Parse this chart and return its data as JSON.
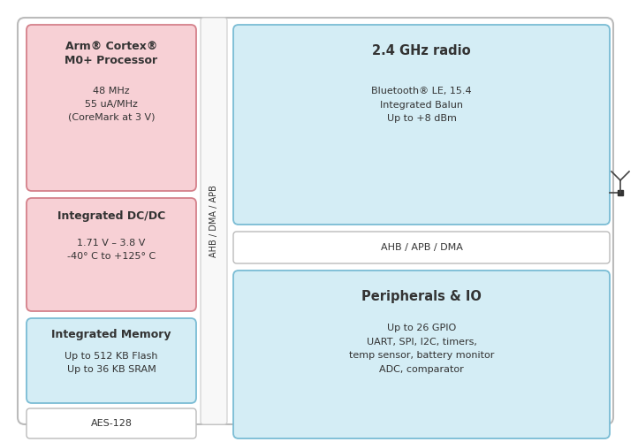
{
  "bg_color": "#ffffff",
  "pink_fill": "#f7d0d5",
  "pink_border": "#d4808a",
  "cyan_fill": "#d4edf5",
  "cyan_border": "#7abcd4",
  "white_fill": "#ffffff",
  "white_border": "#bbbbbb",
  "outer_fill": "#f5f5f5",
  "outer_border": "#bbbbbb",
  "bus_col_fill": "#f8f8f8",
  "bus_col_border": "#cccccc",
  "text_color": "#333333",
  "arm_title": "Arm® Cortex®\nM0+ Processor",
  "arm_body": "48 MHz\n55 uA/MHz\n(CoreMark at 3 V)",
  "dcdc_title": "Integrated DC/DC",
  "dcdc_body": "1.71 V – 3.8 V\n-40° C to +125° C",
  "mem_title": "Integrated Memory",
  "mem_body": "Up to 512 KB Flash\nUp to 36 KB SRAM",
  "aes_label": "AES-128",
  "radio_title": "2.4 GHz radio",
  "radio_body": "Bluetooth® LE, 15.4\nIntegrated Balun\nUp to +8 dBm",
  "bus_label": "AHB / APB / DMA",
  "periph_title": "Peripherals & IO",
  "periph_body": "Up to 26 GPIO\nUART, SPI, I2C, timers,\ntemp sensor, battery monitor\nADC, comparator",
  "bus_vertical_label": "AHB / DMA / APB",
  "title_fontsize": 9,
  "body_fontsize": 8,
  "bus_fontsize": 8
}
